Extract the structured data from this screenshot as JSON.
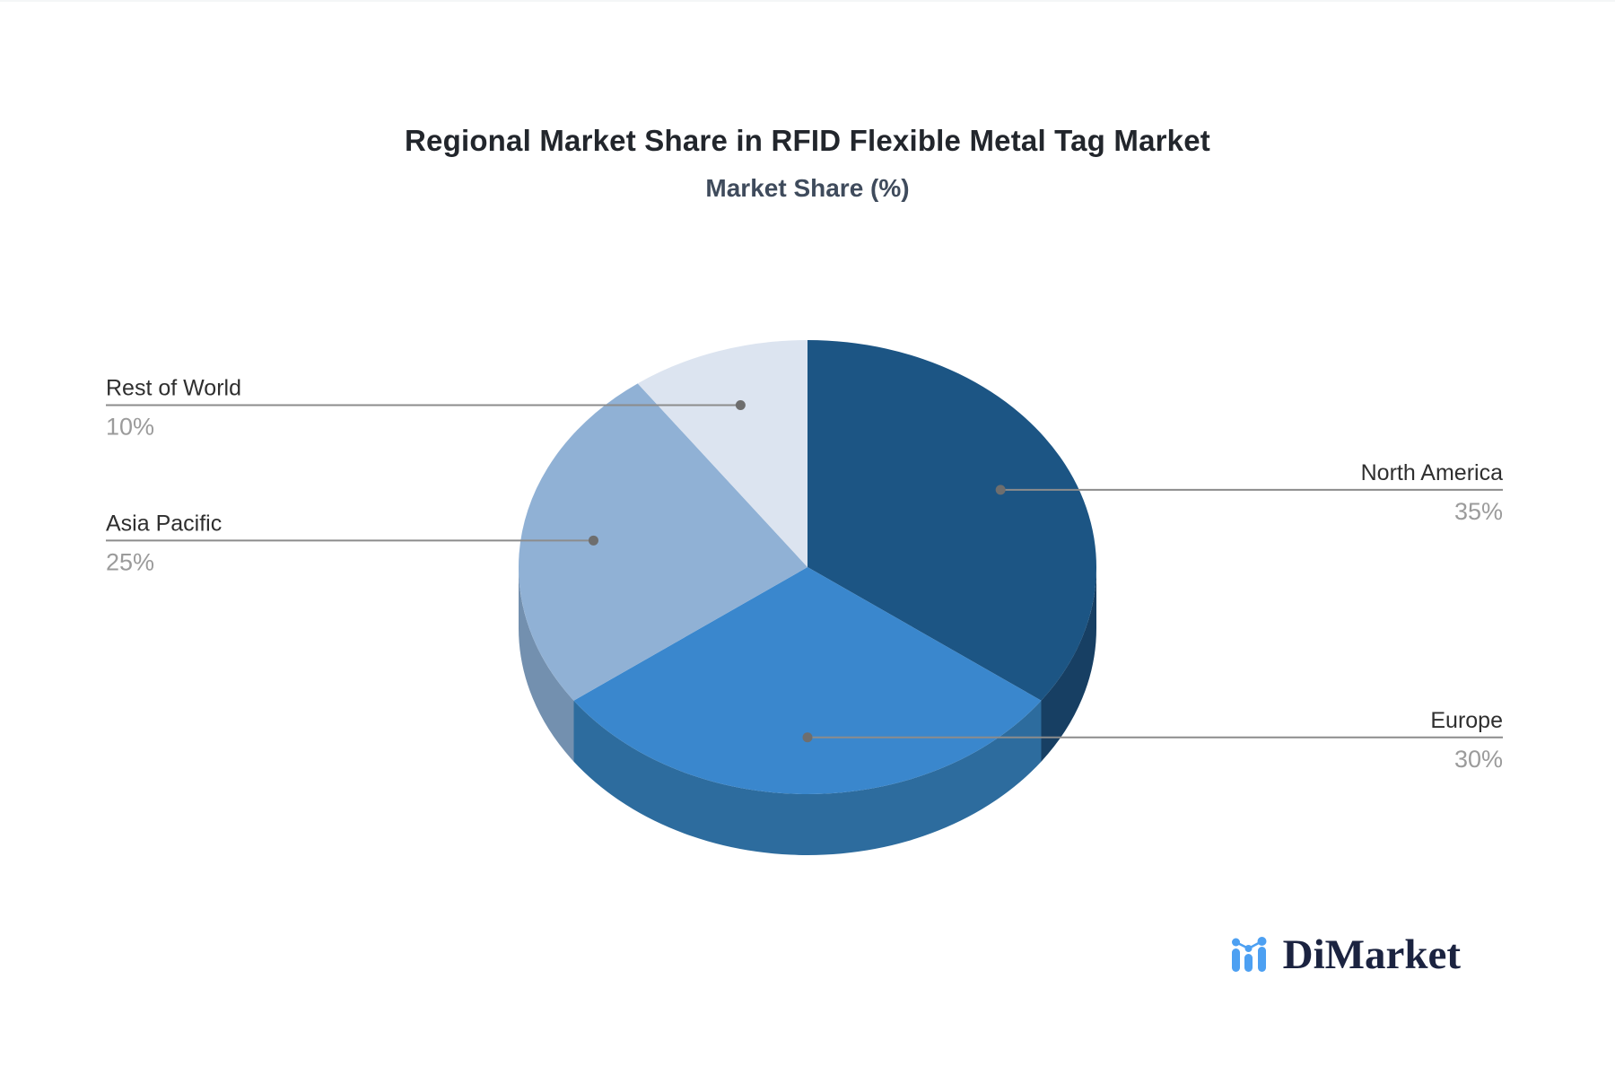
{
  "chart_data": {
    "type": "pie",
    "title": "Regional Market Share in RFID Flexible Metal Tag Market",
    "subtitle": "Market Share (%)",
    "unit": "%",
    "style": "3d",
    "start_angle_deg": 0,
    "direction": "clockwise",
    "legend": "none",
    "slices": [
      {
        "label": "North America",
        "value": 35,
        "display_value": "35%",
        "color": "#1C5584",
        "side_color": "#173F63",
        "label_side": "right"
      },
      {
        "label": "Europe",
        "value": 30,
        "display_value": "30%",
        "color": "#3A87CD",
        "side_color": "#2D6C9E",
        "label_side": "right"
      },
      {
        "label": "Asia Pacific",
        "value": 25,
        "display_value": "25%",
        "color": "#90B1D5",
        "side_color": "#7390AF",
        "label_side": "left"
      },
      {
        "label": "Rest of World",
        "value": 10,
        "display_value": "10%",
        "color": "#DCE4F0",
        "side_color": "#B9C3D4",
        "label_side": "left"
      }
    ],
    "leader_line_color": "#8c8c8c",
    "leader_dot_color": "#6e6e6e",
    "label_text_color": "#2f2f2f",
    "value_text_color": "#9b9b9b"
  },
  "brand": {
    "name": "DiMarket",
    "icon": "bar-chart-logo-icon",
    "accent_color": "#4DA0F2",
    "text_color": "#1B2340"
  }
}
